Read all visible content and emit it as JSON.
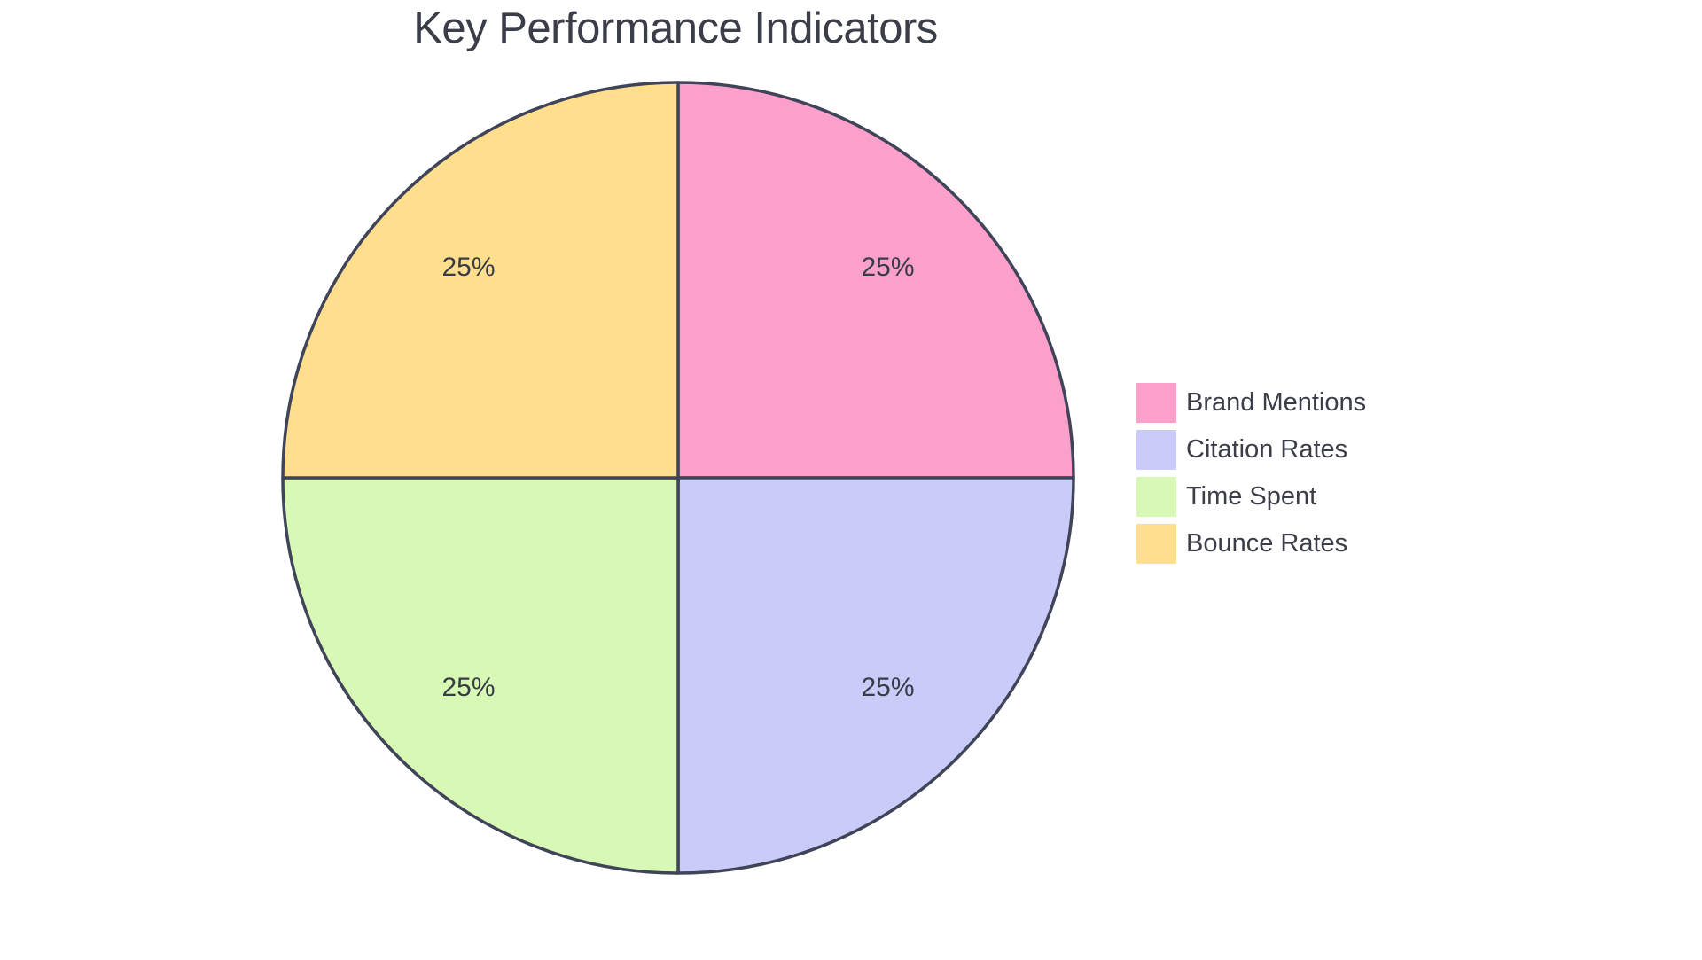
{
  "title": "Key Performance Indicators",
  "chart_data": {
    "type": "pie",
    "title": "Key Performance Indicators",
    "categories": [
      "Brand Mentions",
      "Citation Rates",
      "Time Spent",
      "Bounce Rates"
    ],
    "values": [
      25,
      25,
      25,
      25
    ],
    "slice_labels": [
      "25%",
      "25%",
      "25%",
      "25%"
    ],
    "colors": [
      "#FBA0CA",
      "#CACBF8",
      "#D7F9B5",
      "#FFDE8E"
    ],
    "stroke_color": "#3F4458",
    "text_color": "#3B3E48",
    "legend_position": "right",
    "start_angle": "top",
    "direction": "clockwise"
  },
  "legend": {
    "items": [
      {
        "label": "Brand Mentions",
        "color": "#FBA0CA"
      },
      {
        "label": "Citation Rates",
        "color": "#CACBF8"
      },
      {
        "label": "Time Spent",
        "color": "#D7F9B5"
      },
      {
        "label": "Bounce Rates",
        "color": "#FFDE8E"
      }
    ]
  }
}
